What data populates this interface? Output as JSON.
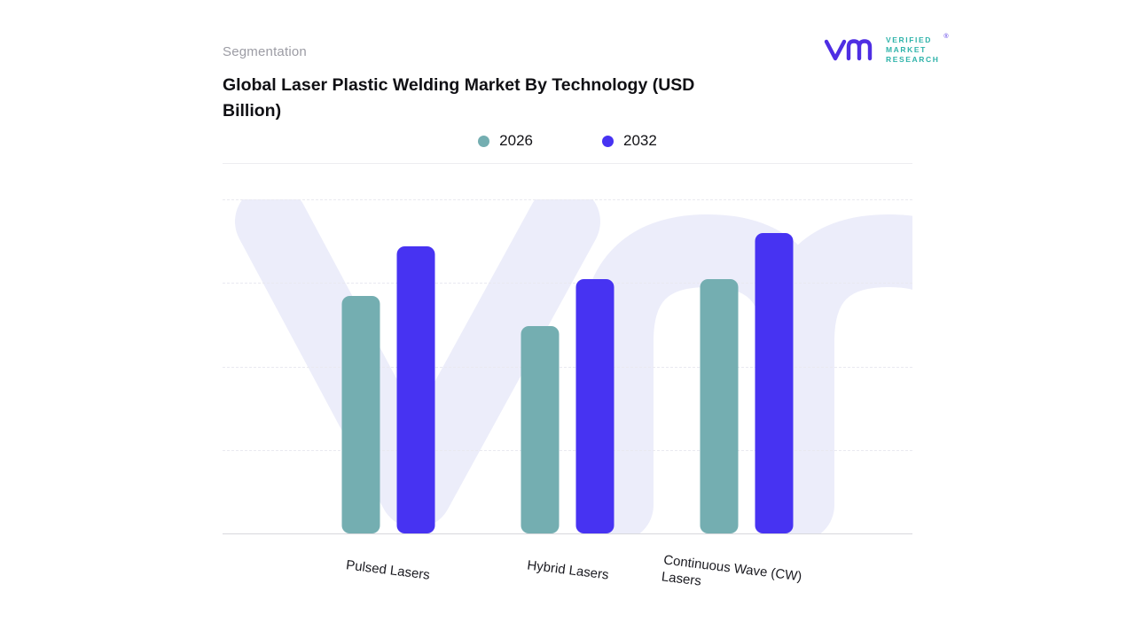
{
  "header": {
    "eyebrow": "Segmentation",
    "title": "Global Laser Plastic Welding Market By Technology (USD Billion)"
  },
  "brand": {
    "monogram": "vm",
    "name_lines": [
      "VERIFIED",
      "MARKET",
      "RESEARCH"
    ],
    "registered": "®",
    "purple": "#4E2EE3",
    "teal": "#2FB3AA"
  },
  "legend": {
    "items": [
      {
        "label": "2026",
        "color": "#74AEB1"
      },
      {
        "label": "2032",
        "color": "#4733F2"
      }
    ]
  },
  "watermark": {
    "text": "vm",
    "color": "#ECEDFA"
  },
  "chart_data": {
    "type": "bar",
    "title": "Global Laser Plastic Welding Market By Technology (USD Billion)",
    "categories": [
      "Pulsed Lasers",
      "Hybrid Lasers",
      "Continuous Wave (CW) Lasers"
    ],
    "series": [
      {
        "name": "2026",
        "color": "#74AEB1",
        "values": [
          71,
          62,
          76
        ]
      },
      {
        "name": "2032",
        "color": "#4733F2",
        "values": [
          86,
          76,
          90
        ]
      }
    ],
    "xlabel": "",
    "ylabel": "USD Billion",
    "ylim": [
      0,
      100
    ],
    "units": "relative bar heights (no numeric axis shown in figure)",
    "grid": "horizontal-dashed",
    "value_labels": false,
    "legend_position": "top-center"
  }
}
